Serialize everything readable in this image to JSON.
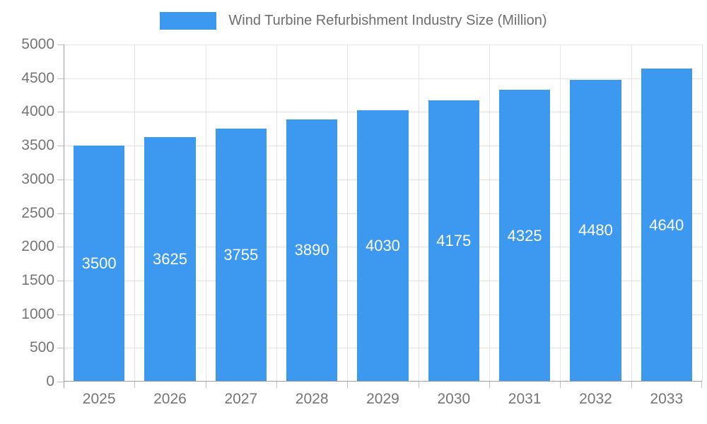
{
  "legend": {
    "label": "Wind Turbine Refurbishment Industry Size (Million)"
  },
  "chart_data": {
    "type": "bar",
    "title": "Wind Turbine Refurbishment Industry Size (Million)",
    "categories": [
      "2025",
      "2026",
      "2027",
      "2028",
      "2029",
      "2030",
      "2031",
      "2032",
      "2033"
    ],
    "series": [
      {
        "name": "Wind Turbine Refurbishment Industry Size (Million)",
        "values": [
          3500,
          3625,
          3755,
          3890,
          4030,
          4175,
          4325,
          4480,
          4640
        ]
      }
    ],
    "xlabel": "",
    "ylabel": "",
    "ylim": [
      0,
      5000
    ],
    "y_ticks": [
      0,
      500,
      1000,
      1500,
      2000,
      2500,
      3000,
      3500,
      4000,
      4500,
      5000
    ],
    "grid": true,
    "legend_position": "top",
    "value_labels_position": "inside-center"
  },
  "colors": {
    "bar": "#3D99F0",
    "grid_line": "#E3E3E3",
    "axis_line": "#9E9E9E",
    "tick_mark": "#C0C0C0",
    "tick_label": "#757575",
    "value_label": "#FFFFFF",
    "legend_text": "#6E6E6E",
    "background": "#FFFFFF"
  }
}
